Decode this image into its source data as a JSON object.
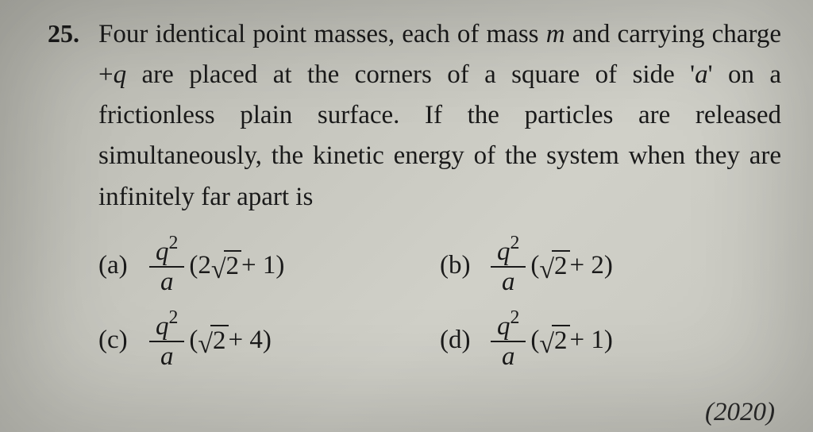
{
  "question": {
    "number": "25.",
    "text_parts": {
      "p1": "Four identical point masses, each of mass ",
      "m": "m",
      "p2": " and carrying charge +",
      "q": "q",
      "p3": " are placed at the corners of a square of side '",
      "a": "a",
      "p4": "' on a frictionless plain surface. If the particles are released simultaneously, the kinetic energy of the system when they are infinitely far apart is"
    }
  },
  "fraction": {
    "num_base": "q",
    "num_exp": "2",
    "den": "a"
  },
  "options": {
    "a": {
      "label": "(a)",
      "coef": "2",
      "radicand": "2",
      "tail": " + 1)"
    },
    "b": {
      "label": "(b)",
      "coef": "",
      "radicand": "2",
      "tail": " + 2)"
    },
    "c": {
      "label": "(c)",
      "coef": "",
      "radicand": "2",
      "tail": " + 4)"
    },
    "d": {
      "label": "(d)",
      "coef": "",
      "radicand": "2",
      "tail": " + 1)"
    }
  },
  "year": "(2020)",
  "symbols": {
    "radical": "√",
    "open": "(",
    "close": ")"
  }
}
